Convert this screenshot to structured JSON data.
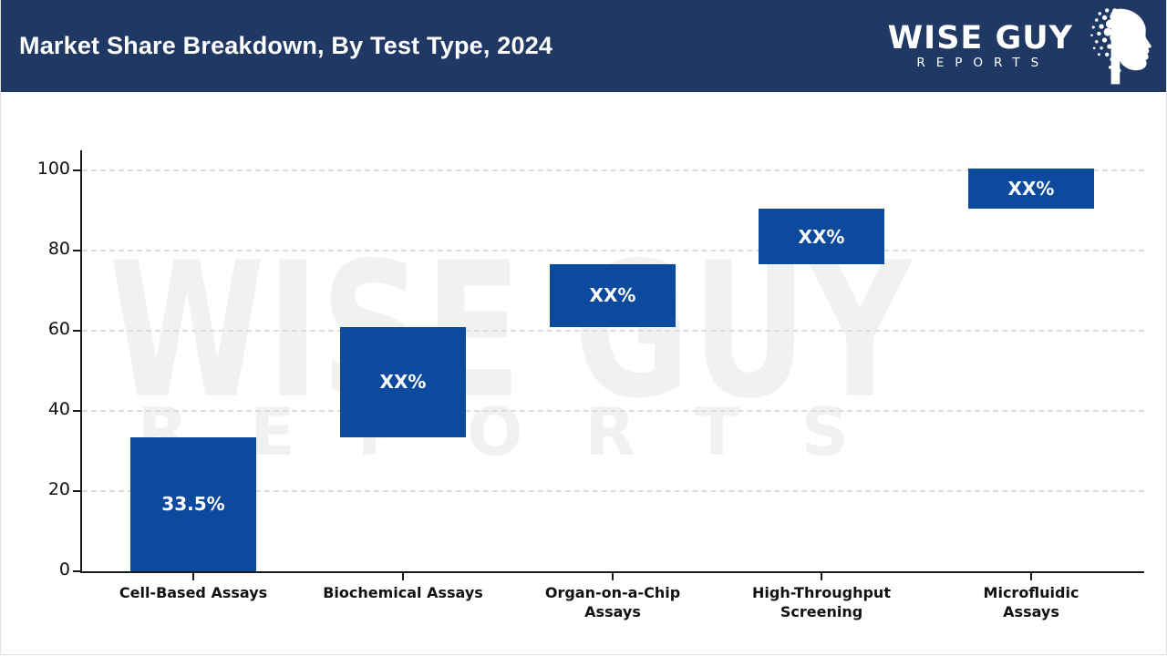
{
  "header": {
    "title": "Market Share Breakdown, By Test Type, 2024",
    "logo": {
      "name": "WISE GUY",
      "subname": "REPORTS"
    }
  },
  "watermark": {
    "line1": "WISE GUY",
    "line2": "REPORTS"
  },
  "colors": {
    "header_bg": "#1f3864",
    "bar": "#0c4a9e",
    "bar_label": "#ffffff",
    "axis": "#1a1a1a",
    "grid": "#dcdcdc",
    "tick_label": "#111111",
    "watermark": "#f1f1f1"
  },
  "chart_data": {
    "type": "bar",
    "subtype": "waterfall",
    "title": "Market Share Breakdown, By Test Type, 2024",
    "categories": [
      "Cell-Based Assays",
      "Biochemical Assays",
      "Organ-on-a-Chip Assays",
      "High-Throughput Screening",
      "Microfluidic Assays"
    ],
    "category_label_lines": [
      [
        "Cell-Based Assays"
      ],
      [
        "Biochemical Assays"
      ],
      [
        "Organ-on-a-Chip",
        "Assays"
      ],
      [
        "High-Throughput",
        "Screening"
      ],
      [
        "Microfluidic",
        "Assays"
      ]
    ],
    "series": [
      {
        "name": "Market share (%)",
        "segments": [
          {
            "category": "Cell-Based Assays",
            "from": 0,
            "to": 33.5,
            "label": "33.5%"
          },
          {
            "category": "Biochemical Assays",
            "from": 33.5,
            "to": 61,
            "label": "XX%"
          },
          {
            "category": "Organ-on-a-Chip Assays",
            "from": 61,
            "to": 76.5,
            "label": "XX%"
          },
          {
            "category": "High-Throughput Screening",
            "from": 76.5,
            "to": 90.5,
            "label": "XX%"
          },
          {
            "category": "Microfluidic Assays",
            "from": 90.5,
            "to": 100.5,
            "label": "XX%"
          }
        ]
      }
    ],
    "yticks": [
      0,
      20,
      40,
      60,
      80,
      100
    ],
    "ylim": [
      0,
      105
    ],
    "grid": "horizontal-dashed",
    "legend": "none"
  }
}
